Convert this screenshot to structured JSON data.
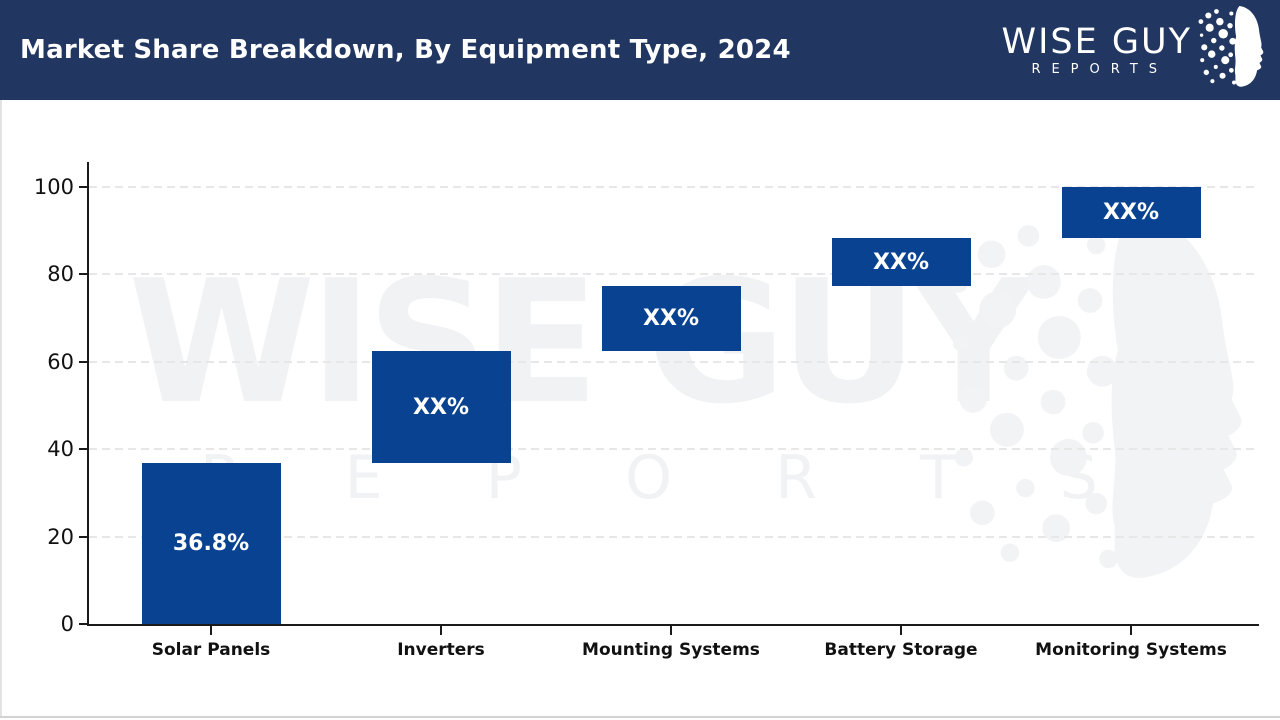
{
  "header": {
    "title": "Market Share Breakdown, By Equipment Type, 2024",
    "bg_color": "#213660",
    "logo": {
      "line1": "WISE GUY",
      "line2": "REPORTS"
    }
  },
  "watermark": {
    "line1": "WISE GUY",
    "line2": "R E P O R T S"
  },
  "chart_data": {
    "type": "bar",
    "subtype": "waterfall",
    "title": "Market Share Breakdown, By Equipment Type, 2024",
    "xlabel": "",
    "ylabel": "",
    "categories": [
      "Solar Panels",
      "Inverters",
      "Mounting Systems",
      "Battery Storage",
      "Monitoring Systems"
    ],
    "segments": [
      {
        "category": "Solar Panels",
        "start": 0,
        "end": 36.8,
        "label": "36.8%"
      },
      {
        "category": "Inverters",
        "start": 36.8,
        "end": 62.4,
        "label": "XX%"
      },
      {
        "category": "Mounting Systems",
        "start": 62.4,
        "end": 77.3,
        "label": "XX%"
      },
      {
        "category": "Battery Storage",
        "start": 77.3,
        "end": 88.3,
        "label": "XX%"
      },
      {
        "category": "Monitoring Systems",
        "start": 88.3,
        "end": 100,
        "label": "XX%"
      }
    ],
    "y_ticks": [
      0,
      20,
      40,
      60,
      80,
      100
    ],
    "ylim": [
      0,
      105
    ],
    "grid": "horizontal dashed",
    "legend": "none",
    "bar_color": "#084291",
    "bar_label_color": "#ffffff",
    "axis_color": "#1a1a1a",
    "gridline_color": "#e7e7e7"
  }
}
